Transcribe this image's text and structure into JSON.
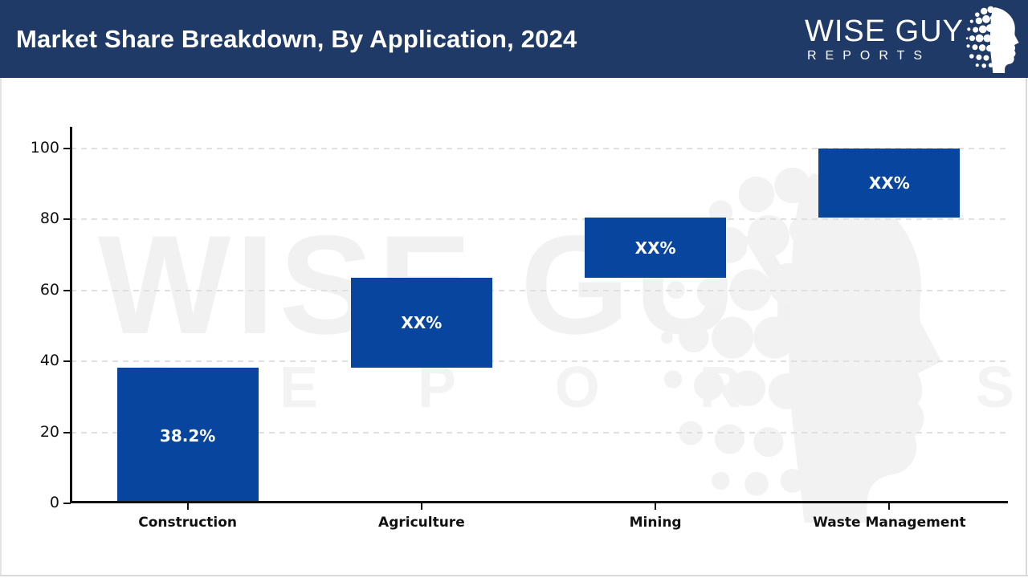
{
  "header": {
    "title": "Market Share Breakdown, By Application, 2024",
    "logo": {
      "line1": "WISE GUY",
      "line2": "REPORTS"
    }
  },
  "watermark": {
    "line1": "WISE GUY",
    "line2": "R E P O R T S"
  },
  "colors": {
    "header_bg": "#1f3a66",
    "bar": "#07459f",
    "grid": "#e0e0e0",
    "axis_text": "#111111",
    "bar_label": "#ffffff",
    "watermark": "#f1f1f1"
  },
  "chart_data": {
    "type": "bar",
    "subtype": "waterfall",
    "title": "Market Share Breakdown, By Application, 2024",
    "categories": [
      "Construction",
      "Agriculture",
      "Mining",
      "Waste Management"
    ],
    "series": [
      {
        "name": "Market Share",
        "segments": [
          {
            "category": "Construction",
            "start": 0,
            "end": 38.2,
            "label": "38.2%"
          },
          {
            "category": "Agriculture",
            "start": 38.2,
            "end": 63.5,
            "label": "XX%"
          },
          {
            "category": "Mining",
            "start": 63.5,
            "end": 80.5,
            "label": "XX%"
          },
          {
            "category": "Waste Management",
            "start": 80.5,
            "end": 100,
            "label": "XX%"
          }
        ]
      }
    ],
    "xlabel": "",
    "ylabel": "",
    "ylim": [
      0,
      100
    ],
    "yticks": [
      0,
      20,
      40,
      60,
      80,
      100
    ],
    "grid": "horizontal-dashed",
    "legend": "none",
    "bar_color": "#07459f",
    "label_color": "#ffffff"
  }
}
